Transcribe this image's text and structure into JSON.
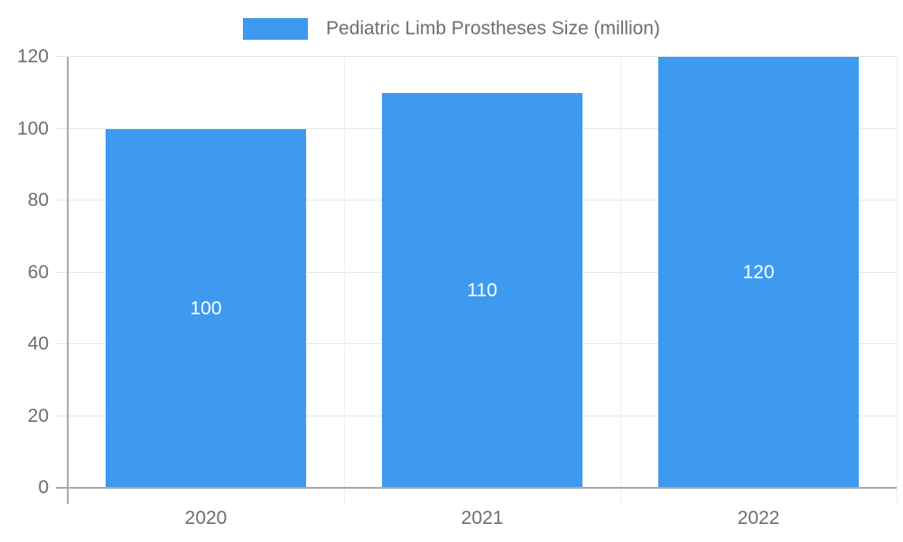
{
  "chart_data": {
    "type": "bar",
    "title": "Pediatric Limb Prostheses Size (million)",
    "legend_position": "top",
    "categories": [
      "2020",
      "2021",
      "2022"
    ],
    "series": [
      {
        "name": "Pediatric Limb Prostheses Size (million)",
        "values": [
          100,
          110,
          120
        ],
        "data_labels": [
          "100",
          "110",
          "120"
        ]
      }
    ],
    "xlabel": "",
    "ylabel": "",
    "ylim": [
      0,
      120
    ],
    "yticks": [
      0,
      20,
      40,
      60,
      80,
      100,
      120
    ],
    "ytick_labels": [
      "0",
      "20",
      "40",
      "60",
      "80",
      "100",
      "120"
    ],
    "grid": true,
    "colors": {
      "bar": "#3d9af0",
      "grid_line": "#e6e6e6",
      "vertical_grid_line": "#eeeeee",
      "axis_line": "#ababab",
      "axis_text": "#6e6e6e",
      "bar_label_text": "#ffffff",
      "background": "#ffffff"
    }
  }
}
